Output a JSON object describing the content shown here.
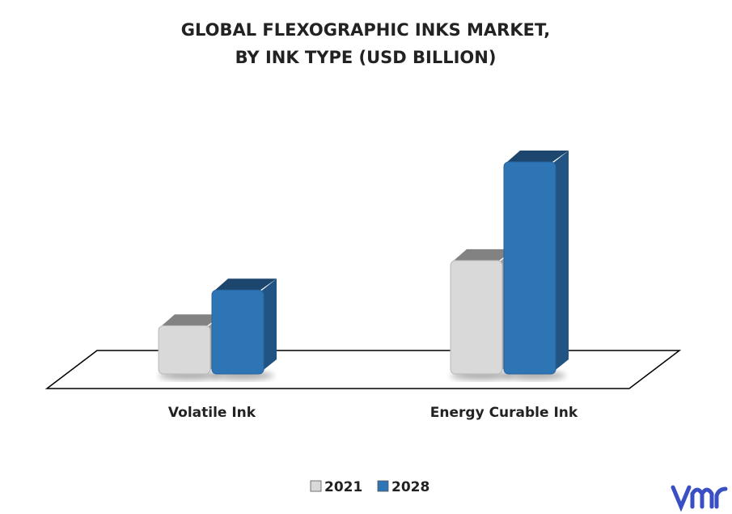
{
  "chart_data": {
    "type": "bar3d",
    "title": [
      "GLOBAL FLEXOGRAPHIC INKS MARKET,",
      "BY INK TYPE (USD BILLION)"
    ],
    "categories": [
      "Volatile Ink",
      "Energy Curable Ink"
    ],
    "series": [
      {
        "name": "2021",
        "color": "#d9d9d9",
        "values": [
          2.3,
          5.4
        ]
      },
      {
        "name": "2028",
        "color": "#2e75b6",
        "values": [
          4.0,
          10.1
        ]
      }
    ],
    "legend": "bottom"
  }
}
